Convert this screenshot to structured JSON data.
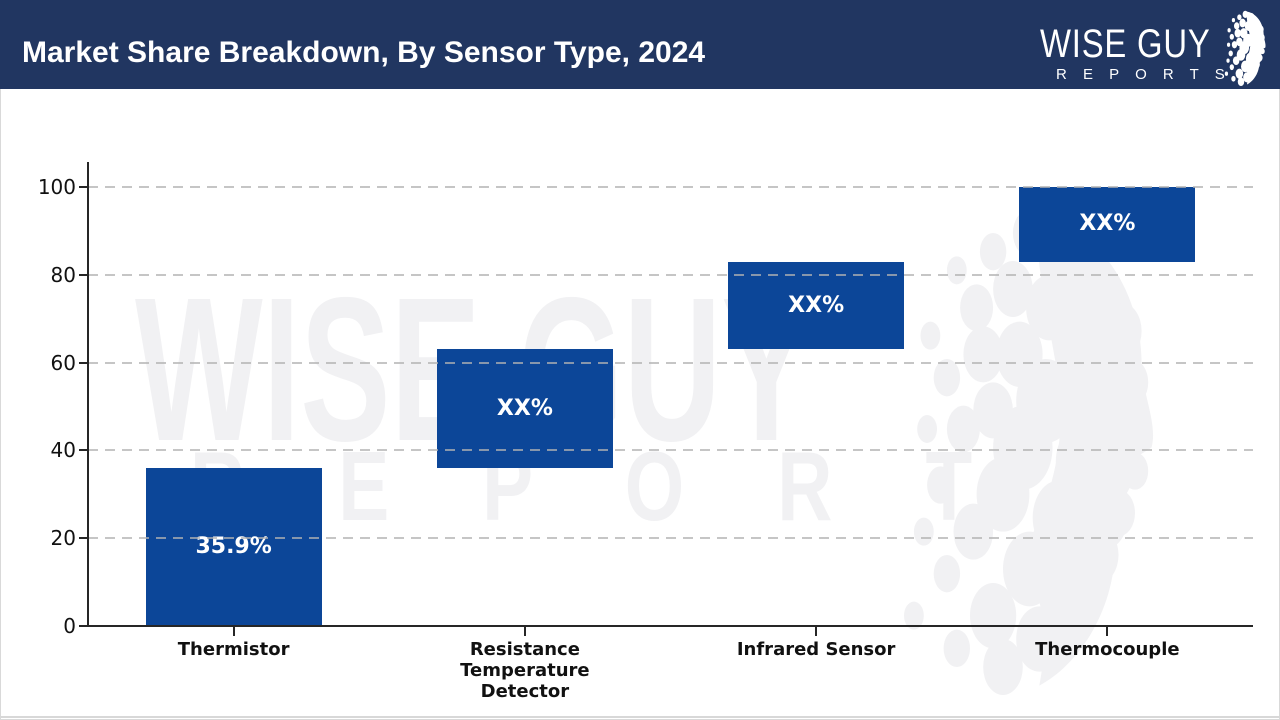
{
  "header": {
    "title": "Market Share Breakdown, By Sensor Type, 2024",
    "logo": {
      "wordmark": "WISE GUY",
      "subtext": "R E P O R T S"
    }
  },
  "watermark": {
    "wordmark": "WISE GUY",
    "subtext": "R E P O R T S"
  },
  "colors": {
    "header_bg": "#213661",
    "bar": "#0c4698",
    "bar_label": "#ffffff",
    "watermark": "#f1f1f3",
    "gridline": "#b2b2b2",
    "axis": "#262626"
  },
  "chart_data": {
    "type": "bar",
    "variant": "waterfall",
    "title": "Market Share Breakdown, By Sensor Type, 2024",
    "categories": [
      "Thermistor",
      "Resistance Temperature Detector",
      "Infrared Sensor",
      "Thermocouple"
    ],
    "category_label_lines": [
      [
        "Thermistor"
      ],
      [
        "Resistance",
        "Temperature",
        "Detector"
      ],
      [
        "Infrared Sensor"
      ],
      [
        "Thermocouple"
      ]
    ],
    "segments": [
      {
        "category": "Thermistor",
        "start": 0,
        "end": 35.9,
        "label": "35.9%"
      },
      {
        "category": "Resistance Temperature Detector",
        "start": 35.9,
        "end": 63,
        "label": "XX%"
      },
      {
        "category": "Infrared Sensor",
        "start": 63,
        "end": 83,
        "label": "XX%"
      },
      {
        "category": "Thermocouple",
        "start": 83,
        "end": 100,
        "label": "XX%"
      }
    ],
    "ylim": [
      0,
      100
    ],
    "yticks": [
      0,
      20,
      40,
      60,
      80,
      100
    ],
    "xlabel": "",
    "ylabel": "",
    "grid": "horizontal-dashed-above-bars",
    "legend": false
  }
}
